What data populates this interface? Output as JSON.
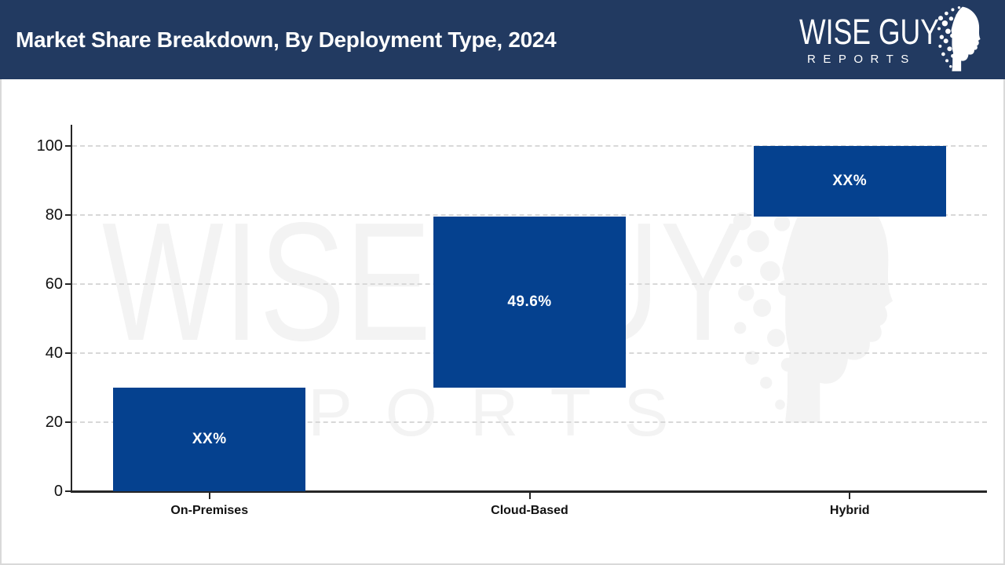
{
  "header": {
    "title": "Market Share Breakdown, By Deployment Type, 2024",
    "brand": {
      "line1": "WISE GUY",
      "line2": "REPORTS"
    }
  },
  "colors": {
    "header_bg": "#223A61",
    "bar": "#05418F",
    "grid": "#D8D8D8",
    "axis": "#262626",
    "watermark": "#F3F3F3",
    "border": "#D9D9D9",
    "title_text": "#FFFFFF",
    "bar_label_text": "#FFFFFF"
  },
  "chart_data": {
    "type": "bar",
    "subtype": "waterfall",
    "title": "Market Share Breakdown, By Deployment Type, 2024",
    "categories": [
      "On-Premises",
      "Cloud-Based",
      "Hybrid"
    ],
    "segments": [
      {
        "category": "On-Premises",
        "start": 0,
        "end": 30,
        "value": "XX",
        "value_label": "XX%"
      },
      {
        "category": "Cloud-Based",
        "start": 30,
        "end": 79.6,
        "value": 49.6,
        "value_label": "49.6%"
      },
      {
        "category": "Hybrid",
        "start": 79.6,
        "end": 100,
        "value": "XX",
        "value_label": "XX%"
      }
    ],
    "ylim": [
      0,
      100
    ],
    "yticks": [
      0,
      20,
      40,
      60,
      80,
      100
    ],
    "xlabel": "",
    "ylabel": "",
    "grid": "horizontal-dashed",
    "legend": "none",
    "bar_color": "#05418F"
  }
}
